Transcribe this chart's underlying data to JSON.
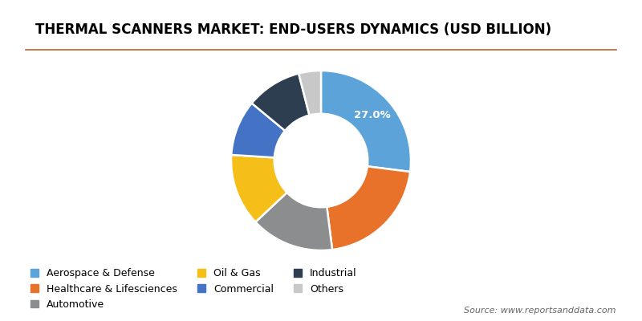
{
  "title": "THERMAL SCANNERS MARKET: END-USERS DYNAMICS (USD BILLION)",
  "segments": [
    {
      "label": "Aerospace & Defense",
      "value": 27.0,
      "color": "#5BA3D9"
    },
    {
      "label": "Healthcare & Lifesciences",
      "value": 21.0,
      "color": "#E8722A"
    },
    {
      "label": "Automotive",
      "value": 15.0,
      "color": "#8B8D8E"
    },
    {
      "label": "Oil & Gas",
      "value": 13.0,
      "color": "#F5BE18"
    },
    {
      "label": "Commercial",
      "value": 10.0,
      "color": "#4472C4"
    },
    {
      "label": "Industrial",
      "value": 10.0,
      "color": "#2C3E50"
    },
    {
      "label": "Others",
      "value": 4.0,
      "color": "#C8C8C8"
    }
  ],
  "label_text": "27.0%",
  "background_color": "#FFFFFF",
  "title_fontsize": 12,
  "source_text": "Source: www.reportsanddata.com",
  "title_color": "#000000",
  "legend_fontsize": 9,
  "separator_color": "#C0622A",
  "startangle": 90
}
